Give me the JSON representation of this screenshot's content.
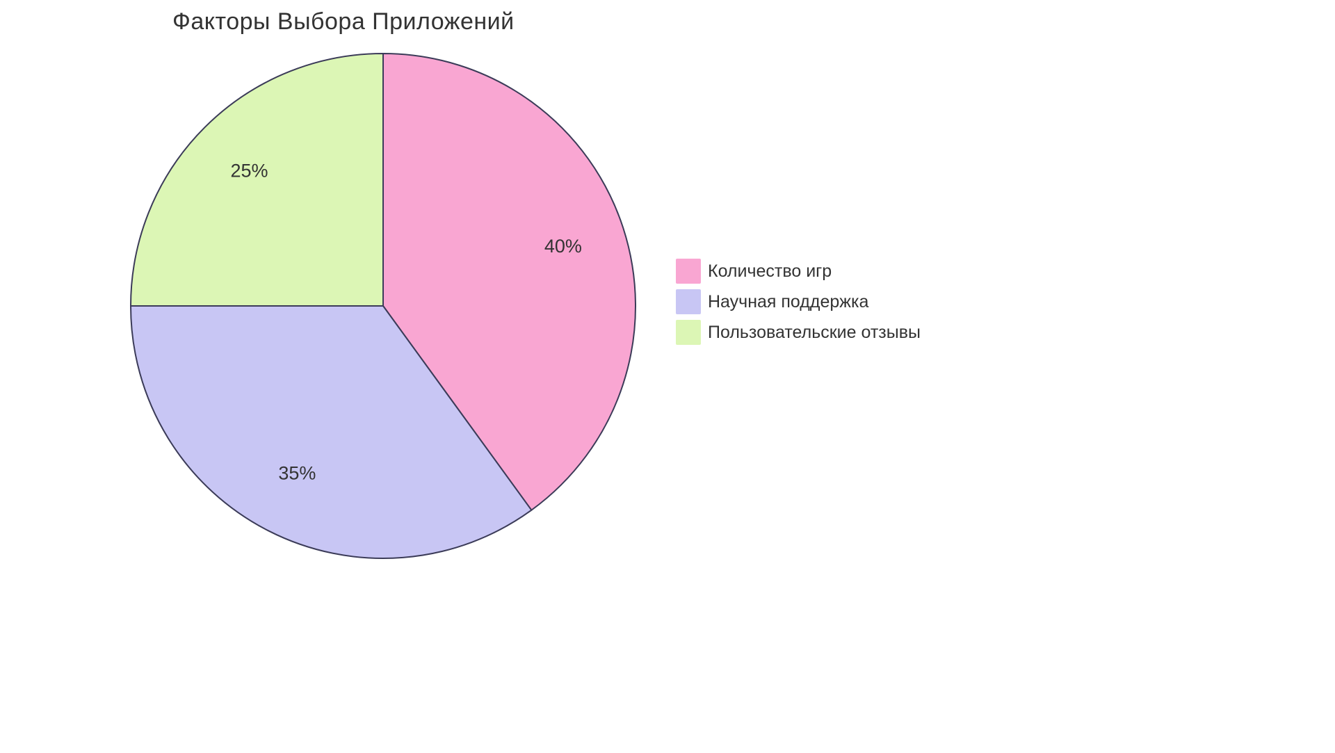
{
  "chart_data": {
    "type": "pie",
    "title": "Факторы Выбора Приложений",
    "categories": [
      "Количество игр",
      "Научная поддержка",
      "Пользовательские отзывы"
    ],
    "values": [
      40,
      35,
      25
    ],
    "percent_labels": [
      "40%",
      "35%",
      "25%"
    ],
    "colors": [
      "#F9A6D2",
      "#C8C6F4",
      "#DCF6B5"
    ],
    "slice_border_color": "#3B3B58",
    "label_text_color": "#333333",
    "legend_position": "right",
    "start_angle": "top",
    "direction": "clockwise"
  }
}
